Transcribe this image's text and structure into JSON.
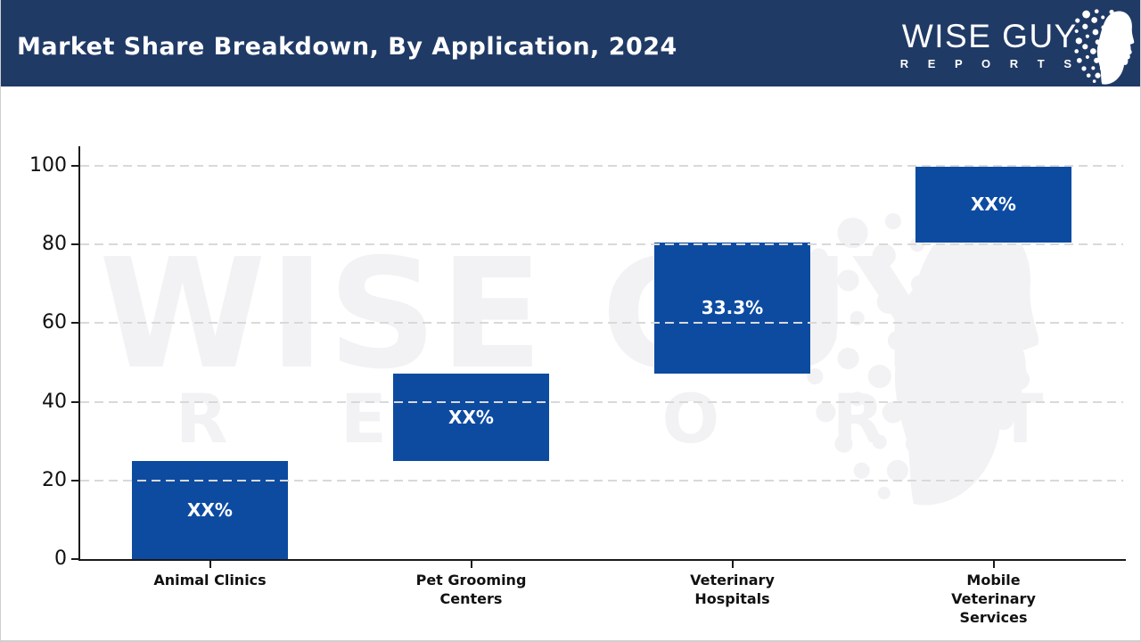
{
  "header": {
    "title": "Market Share Breakdown, By Application, 2024",
    "bg_color": "#203a66",
    "logo": {
      "wordmark": "WISE GUY",
      "subtext": "R E P O R T S"
    }
  },
  "watermark": {
    "wordmark": "WISE GUY",
    "subtext": "R E P O R T S"
  },
  "chart_data": {
    "type": "bar",
    "subtype": "floating-waterfall",
    "title": "Market Share Breakdown, By Application, 2024",
    "categories": [
      "Animal Clinics",
      "Pet Grooming Centers",
      "Veterinary Hospitals",
      "Mobile Veterinary Services"
    ],
    "bars": [
      {
        "category": "Animal Clinics",
        "start": 0,
        "end": 25,
        "label": "XX%"
      },
      {
        "category": "Pet Grooming Centers",
        "start": 25,
        "end": 47.2,
        "label": "XX%"
      },
      {
        "category": "Veterinary Hospitals",
        "start": 47.2,
        "end": 80.5,
        "label": "33.3%"
      },
      {
        "category": "Mobile Veterinary Services",
        "start": 80.5,
        "end": 99.8,
        "label": "XX%"
      }
    ],
    "yticks": [
      0,
      20,
      40,
      60,
      80,
      100
    ],
    "ylim": [
      0,
      100
    ],
    "xlabel": "",
    "ylabel": "",
    "grid": "horizontal-dashed",
    "legend": "none",
    "bar_color": "#0d4ba1",
    "bar_label_color": "#ffffff",
    "gridline_color": "#d9d9d9",
    "axis_color": "#1a1a1a"
  }
}
